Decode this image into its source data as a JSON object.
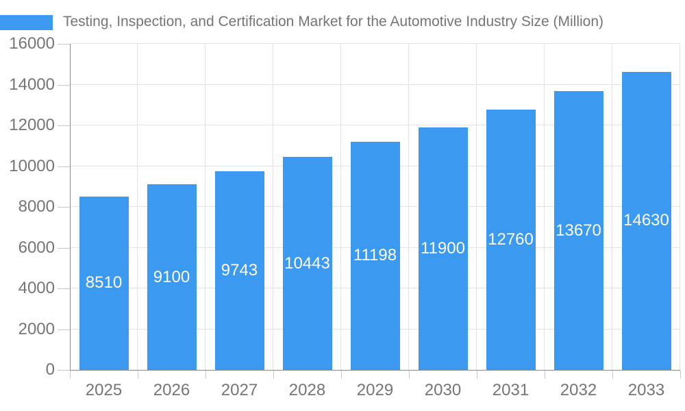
{
  "chart_data": {
    "type": "bar",
    "title": "Testing, Inspection, and Certification Market for the Automotive Industry Size (Million)",
    "legend": {
      "position": "top-left",
      "entries": [
        {
          "label": "Testing, Inspection, and Certification Market for the Automotive Industry Size (Million)",
          "swatch_color": "#3B99F0"
        }
      ]
    },
    "categories": [
      "2025",
      "2026",
      "2027",
      "2028",
      "2029",
      "2030",
      "2031",
      "2032",
      "2033"
    ],
    "values": [
      8510,
      9100,
      9743,
      10443,
      11198,
      11900,
      12760,
      13670,
      14630
    ],
    "bar_value_labels": [
      "8510",
      "9100",
      "9743",
      "10443",
      "11198",
      "11900",
      "12760",
      "13670",
      "14630"
    ],
    "xlabel": "",
    "ylabel": "",
    "ylim": [
      0,
      16000
    ],
    "yticks": [
      0,
      2000,
      4000,
      6000,
      8000,
      10000,
      12000,
      14000,
      16000
    ],
    "grid": {
      "horizontal": true,
      "vertical": true
    },
    "colors": {
      "bar": "#3B99F0",
      "bar_label_text": "#FFFFFF",
      "grid_line": "#E2E2E2",
      "axis_line": "#8C8C8C",
      "tick_mark": "#C8C8C8",
      "axis_text": "#757575",
      "title_text": "#757575",
      "background": "#FFFFFF"
    }
  }
}
